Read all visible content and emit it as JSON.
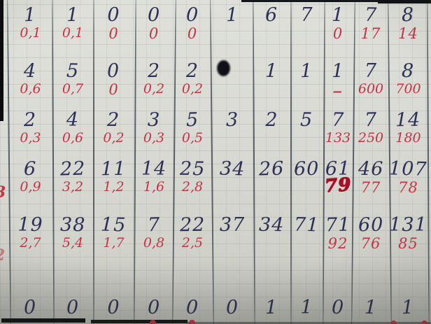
{
  "document_type": "handwritten-ledger-photo",
  "colors": {
    "paper": "#d8dad3",
    "ink_dark": "#2e3057",
    "ink_red": "#c33449",
    "ink_red_bold": "#a50f26",
    "ruled_line": "#3d4250"
  },
  "table": {
    "rows": [
      {
        "cells": [
          {
            "t": "1",
            "b": "0,1"
          },
          {
            "t": "1",
            "b": "0,1"
          },
          {
            "t": "0",
            "b": "0"
          },
          {
            "t": "0",
            "b": "0"
          },
          {
            "t": "0",
            "b": "0"
          },
          {
            "t": "1"
          },
          {
            "t": "6"
          },
          {
            "t": "7"
          },
          {
            "t": "1",
            "b": "0"
          },
          {
            "t": "7",
            "b": "17"
          },
          {
            "t": "8",
            "b": "14"
          }
        ]
      },
      {
        "cells": [
          {
            "t": "4",
            "b": "0,6"
          },
          {
            "t": "5",
            "b": "0,7"
          },
          {
            "t": "0",
            "b": "0"
          },
          {
            "t": "2",
            "b": "0,2"
          },
          {
            "t": "2",
            "b": "0,2"
          },
          {
            "t": "0",
            "blot": true
          },
          {
            "t": "1"
          },
          {
            "t": "1"
          },
          {
            "t": "1",
            "b": "–",
            "dash": true
          },
          {
            "t": "7",
            "b": "600"
          },
          {
            "t": "8",
            "b": "700"
          }
        ]
      },
      {
        "cells": [
          {
            "t": "2",
            "b": "0,3"
          },
          {
            "t": "4",
            "b": "0,6"
          },
          {
            "t": "2",
            "b": "0,2"
          },
          {
            "t": "3",
            "b": "0,3"
          },
          {
            "t": "5",
            "b": "0,5"
          },
          {
            "t": "3"
          },
          {
            "t": "2"
          },
          {
            "t": "5"
          },
          {
            "t": "7",
            "b": "133"
          },
          {
            "t": "7",
            "b": "250"
          },
          {
            "t": "14",
            "b": "180"
          }
        ]
      },
      {
        "cells": [
          {
            "t": "6",
            "b": "0,9"
          },
          {
            "t": "22",
            "b": "3,2"
          },
          {
            "t": "11",
            "b": "1,2"
          },
          {
            "t": "14",
            "b": "1,6"
          },
          {
            "t": "25",
            "b": "2,8"
          },
          {
            "t": "34"
          },
          {
            "t": "26"
          },
          {
            "t": "60"
          },
          {
            "t": "61",
            "b": "79",
            "emph": true
          },
          {
            "t": "46",
            "b": "77"
          },
          {
            "t": "107",
            "b": "78"
          }
        ]
      },
      {
        "cells": [
          {
            "t": "19",
            "b": "2,7"
          },
          {
            "t": "38",
            "b": "5,4"
          },
          {
            "t": "15",
            "b": "1,7"
          },
          {
            "t": "7",
            "b": "0,8"
          },
          {
            "t": "22",
            "b": "2,5"
          },
          {
            "t": "37"
          },
          {
            "t": "34"
          },
          {
            "t": "71"
          },
          {
            "t": "71",
            "b": "92"
          },
          {
            "t": "60",
            "b": "76"
          },
          {
            "t": "131",
            "b": "85"
          }
        ]
      },
      {
        "cells": [
          {
            "t": "0"
          },
          {
            "t": "0"
          },
          {
            "t": "0"
          },
          {
            "t": "0"
          },
          {
            "t": "0"
          },
          {
            "t": "0"
          },
          {
            "t": "1"
          },
          {
            "t": "1"
          },
          {
            "t": "0"
          },
          {
            "t": "1"
          },
          {
            "t": "1"
          }
        ]
      }
    ]
  },
  "edge_marks": {
    "left_partial_digit_1": "3",
    "left_partial_digit_2": "2"
  }
}
